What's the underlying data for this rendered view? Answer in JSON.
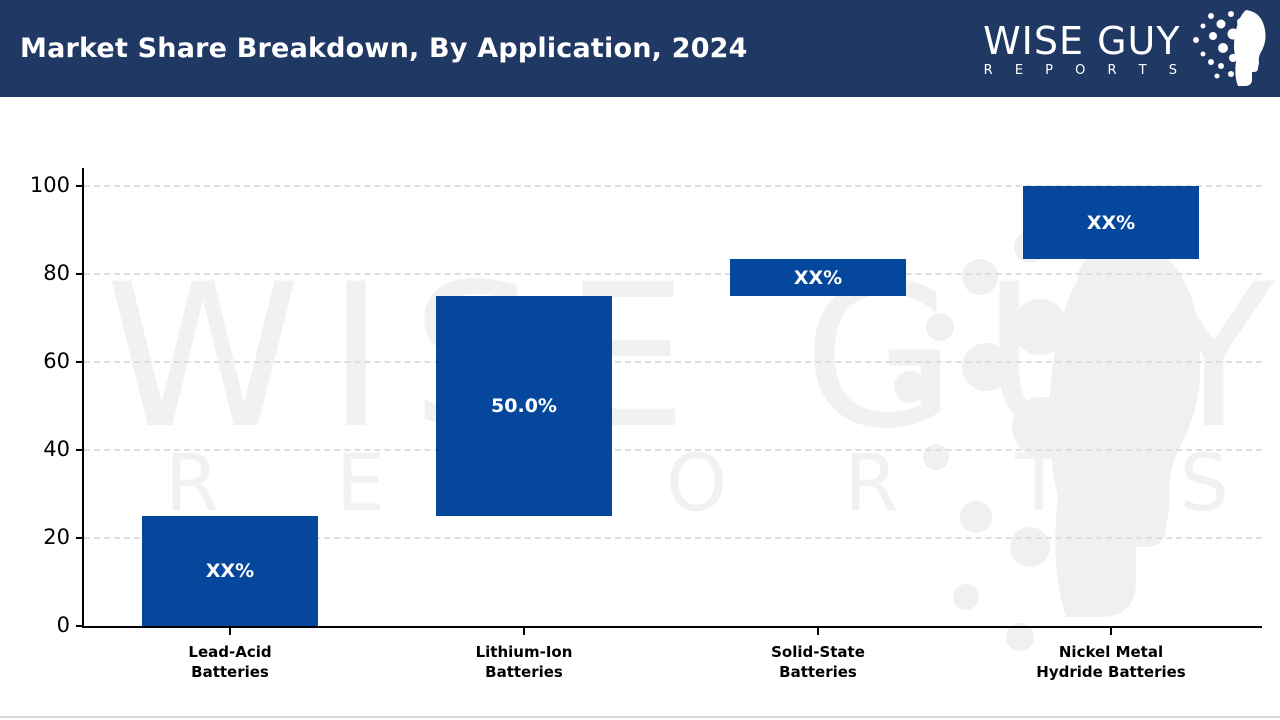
{
  "header": {
    "title": "Market Share Breakdown, By Application, 2024",
    "bg_color": "#1f3864",
    "logo": {
      "line1": "WISE GUY",
      "line2": "R E P O R T S"
    }
  },
  "watermark": {
    "line1": "WISE GUY",
    "line2": "R E P O R T S"
  },
  "chart_data": {
    "type": "bar",
    "variant": "floating-waterfall",
    "title": "Market Share Breakdown, By Application, 2024",
    "categories": [
      [
        "Lead-Acid",
        "Batteries"
      ],
      [
        "Lithium-Ion",
        "Batteries"
      ],
      [
        "Solid-State",
        "Batteries"
      ],
      [
        "Nickel Metal",
        "Hydride Batteries"
      ]
    ],
    "bars": [
      {
        "category": "Lead-Acid Batteries",
        "start": 0,
        "end": 25,
        "value": 25,
        "label": "XX%"
      },
      {
        "category": "Lithium-Ion Batteries",
        "start": 25,
        "end": 75,
        "value": 50,
        "label": "50.0%"
      },
      {
        "category": "Solid-State Batteries",
        "start": 75,
        "end": 83.3,
        "value": 8.3,
        "label": "XX%"
      },
      {
        "category": "Nickel Metal Hydride Batteries",
        "start": 83.3,
        "end": 100,
        "value": 16.7,
        "label": "XX%"
      }
    ],
    "y_axis": {
      "min": 0,
      "max": 100,
      "ticks": [
        0,
        20,
        40,
        60,
        80,
        100
      ]
    },
    "xlabel": "",
    "ylabel": "",
    "bar_color": "#05479c",
    "grid": "horizontal-dashed",
    "grid_color": "#dedede",
    "legend": "none"
  }
}
